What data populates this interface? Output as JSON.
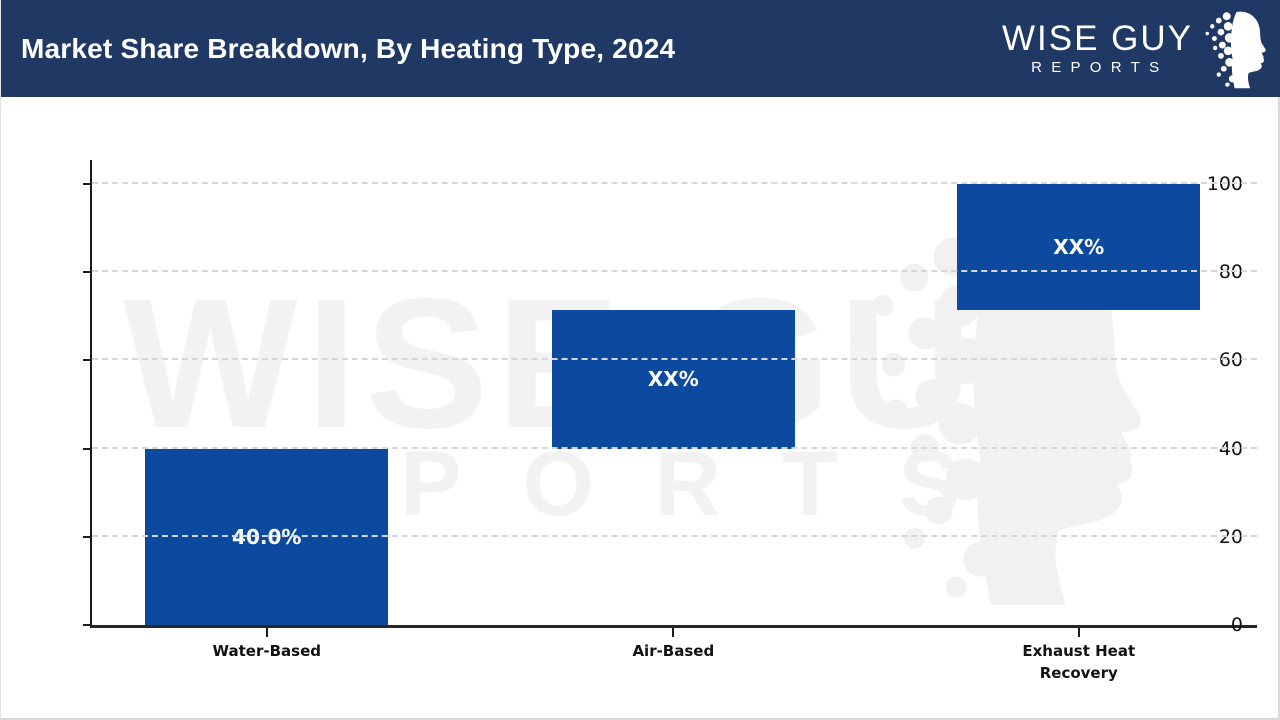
{
  "header": {
    "title": "Market Share Breakdown, By Heating Type, 2024",
    "bg_color": "#1f3864",
    "logo": {
      "line1": "WISE GUY",
      "line2": "REPORTS"
    }
  },
  "watermark": {
    "line1": "WISE GUY",
    "line2": "REPORTS"
  },
  "chart_data": {
    "type": "bar",
    "subtype": "waterfall",
    "title": "Market Share Breakdown, By Heating Type, 2024",
    "categories": [
      "Water-Based",
      "Air-Based",
      "Exhaust Heat Recovery"
    ],
    "segments": [
      {
        "category": "Water-Based",
        "start": 0,
        "end": 40,
        "label": "40.0%"
      },
      {
        "category": "Air-Based",
        "start": 40,
        "end": 71.4,
        "label": "XX%"
      },
      {
        "category": "Exhaust Heat Recovery",
        "start": 71.4,
        "end": 100,
        "label": "XX%"
      }
    ],
    "yticks": [
      0,
      20,
      40,
      60,
      80,
      100
    ],
    "ylim": [
      0,
      105.4
    ],
    "xlabel": "",
    "ylabel": "",
    "grid": "horizontal-dashed-over-bars",
    "legend": "none",
    "bar_color": "#0c4aa0",
    "bar_label_color": "#ffffff",
    "axis_color": "#1a1a1a"
  }
}
